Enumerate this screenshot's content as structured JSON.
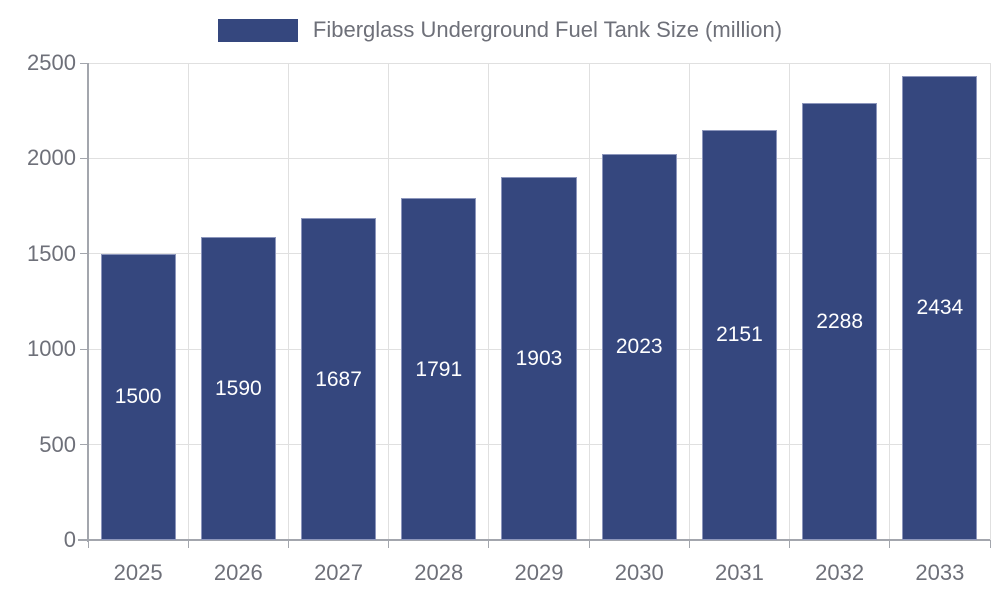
{
  "legend": {
    "label": "Fiberglass Underground Fuel Tank Size (million)"
  },
  "chart_data": {
    "type": "bar",
    "title": "Fiberglass Underground Fuel Tank Size (million)",
    "categories": [
      "2025",
      "2026",
      "2027",
      "2028",
      "2029",
      "2030",
      "2031",
      "2032",
      "2033"
    ],
    "values": [
      1500,
      1590,
      1687,
      1791,
      1903,
      2023,
      2151,
      2288,
      2434
    ],
    "series_name": "Fiberglass Underground Fuel Tank Size (million)",
    "xlabel": "",
    "ylabel": "",
    "ylim": [
      0,
      2500
    ],
    "yticks": [
      0,
      500,
      1000,
      1500,
      2000,
      2500
    ],
    "grid": true,
    "value_labels": "inside-center",
    "legend_position": "top-center",
    "colors": {
      "bar_fill": "#35477e",
      "bar_stroke": "#8c96bc",
      "value_label": "#ffffff",
      "axis_label": "#6e7079",
      "axis_line": "#a3a6ad",
      "gridline": "#e0e0e0",
      "background": "#ffffff"
    }
  }
}
